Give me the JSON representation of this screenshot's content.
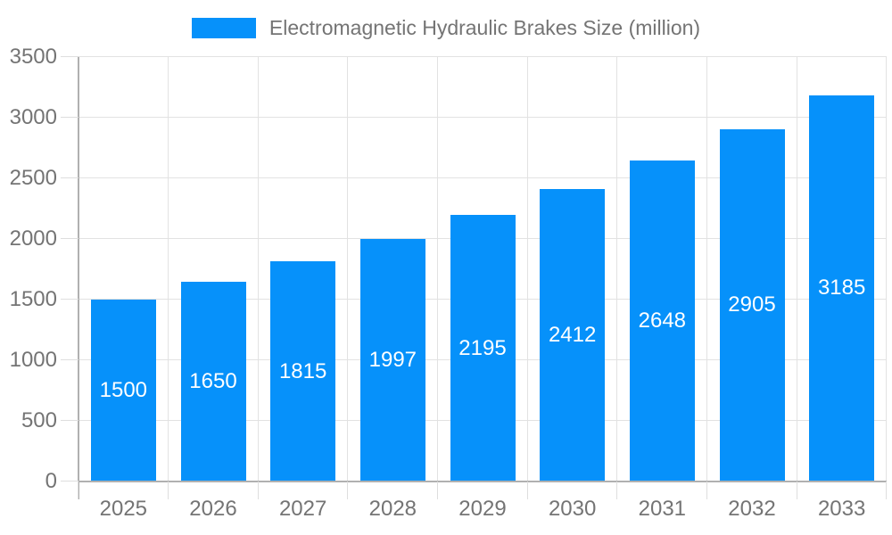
{
  "legend": {
    "label": "Electromagnetic Hydraulic Brakes Size (million)"
  },
  "colors": {
    "bar": "#0691fa",
    "grid": "#e2e2e2",
    "axis": "#b0b0b0",
    "tick_label": "#747474",
    "value_label": "#ffffff",
    "background": "#ffffff"
  },
  "chart_data": {
    "type": "bar",
    "title": "",
    "xlabel": "",
    "ylabel": "",
    "categories": [
      "2025",
      "2026",
      "2027",
      "2028",
      "2029",
      "2030",
      "2031",
      "2032",
      "2033"
    ],
    "series": [
      {
        "name": "Electromagnetic Hydraulic Brakes Size (million)",
        "values": [
          1500,
          1650,
          1815,
          1997,
          2195,
          2412,
          2648,
          2905,
          3185
        ]
      }
    ],
    "ylim": [
      0,
      3500
    ],
    "yticks": [
      0,
      500,
      1000,
      1500,
      2000,
      2500,
      3000,
      3500
    ],
    "grid": true,
    "legend_position": "top",
    "value_label_position": "inside-center"
  }
}
